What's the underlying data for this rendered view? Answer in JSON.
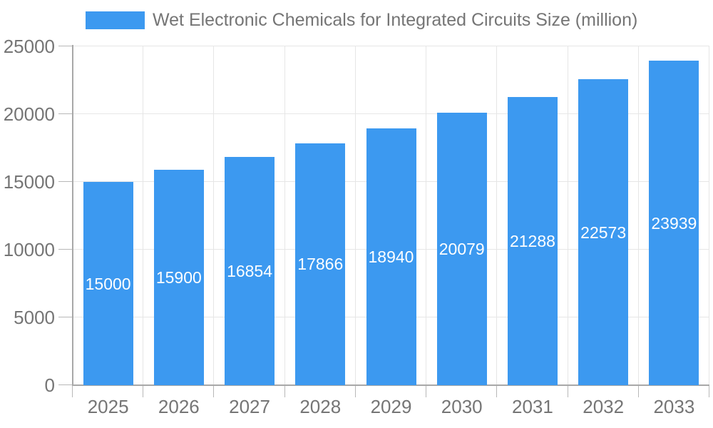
{
  "chart_data": {
    "type": "bar",
    "title": "Wet Electronic Chemicals for Integrated Circuits Size (million)",
    "categories": [
      "2025",
      "2026",
      "2027",
      "2028",
      "2029",
      "2030",
      "2031",
      "2032",
      "2033"
    ],
    "series": [
      {
        "name": "Wet Electronic Chemicals for Integrated Circuits Size (million)",
        "values": [
          15000,
          15900,
          16854,
          17866,
          18940,
          20079,
          21288,
          22573,
          23939
        ]
      }
    ],
    "bar_value_labels": [
      "15000",
      "15900",
      "16854",
      "17866",
      "18940",
      "20079",
      "21288",
      "22573",
      "23939"
    ],
    "xlabel": "",
    "ylabel": "",
    "ylim": [
      0,
      25000
    ],
    "yticks": [
      0,
      5000,
      10000,
      15000,
      20000,
      25000
    ],
    "ytick_labels": [
      "0",
      "5000",
      "10000",
      "15000",
      "20000",
      "25000"
    ],
    "grid": true,
    "legend_position": "top-left",
    "colors": {
      "bar": "#3C99F0",
      "axis": "#a8a8a8",
      "grid": "#e6e6e6",
      "tick": "#b8b8b8",
      "text": "#757575",
      "bar_label": "#ffffff",
      "background": "#ffffff"
    }
  }
}
